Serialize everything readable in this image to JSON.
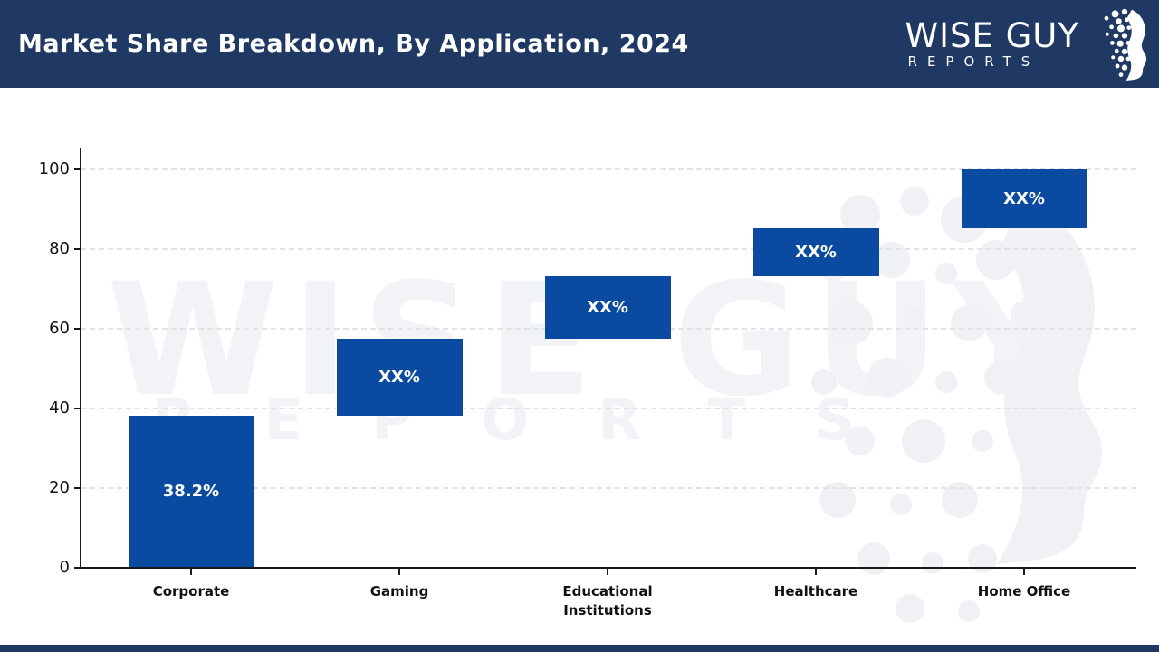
{
  "header": {
    "title": "Market Share Breakdown, By Application, 2024"
  },
  "logo": {
    "line1": "WISE GUY",
    "line2": "REPORTS"
  },
  "watermark": {
    "line1": "WISE GUY",
    "line2": "REPORTS"
  },
  "colors": {
    "header_bg": "#1f3864",
    "footer_bg": "#1f3864",
    "bar_fill": "#0b4aa1",
    "bar_label_text": "#ffffff",
    "axis": "#1a1a1a",
    "gridline": "#e3e3e3",
    "watermark": "#f2f3f6"
  },
  "chart_data": {
    "type": "bar",
    "subtype": "waterfall",
    "title": "Market Share Breakdown, By Application, 2024",
    "categories": [
      "Corporate",
      "Gaming",
      "Educational Institutions",
      "Healthcare",
      "Home Office"
    ],
    "segments": [
      {
        "category": "Corporate",
        "start": 0,
        "end": 38.2,
        "label": "38.2%"
      },
      {
        "category": "Gaming",
        "start": 38.2,
        "end": 57.5,
        "label": "XX%"
      },
      {
        "category": "Educational Institutions",
        "start": 57.5,
        "end": 73.2,
        "label": "XX%"
      },
      {
        "category": "Healthcare",
        "start": 73.2,
        "end": 85.2,
        "label": "XX%"
      },
      {
        "category": "Home Office",
        "start": 85.2,
        "end": 100,
        "label": "XX%"
      }
    ],
    "ylim": [
      0,
      105
    ],
    "yticks": [
      0,
      20,
      40,
      60,
      80,
      100
    ],
    "grid": "horizontal-dashed",
    "legend": "none"
  }
}
